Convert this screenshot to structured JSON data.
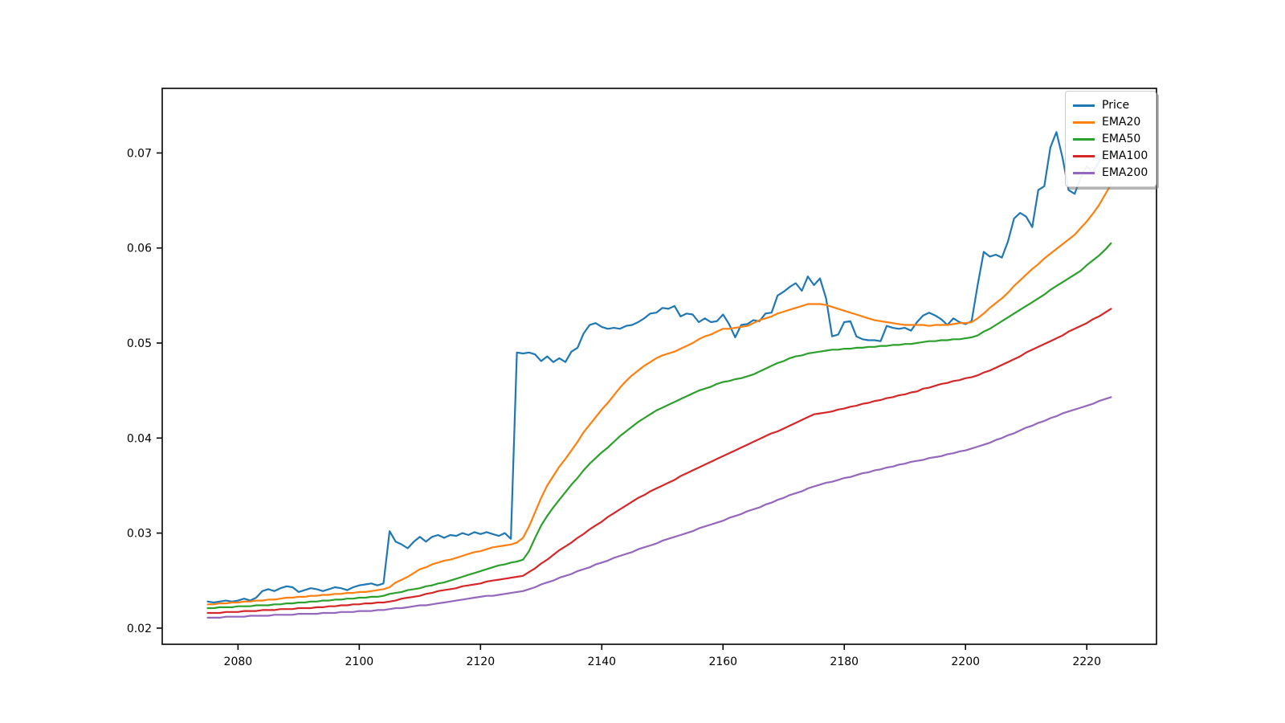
{
  "chart_data": {
    "type": "line",
    "title": "",
    "xlabel": "",
    "ylabel": "",
    "grid": false,
    "background": "#ffffff",
    "xlim": [
      2067.5,
      2231.5
    ],
    "ylim": [
      0.0183,
      0.0768
    ],
    "x_ticks": [
      2080,
      2100,
      2120,
      2140,
      2160,
      2180,
      2200,
      2220
    ],
    "x_tick_labels": [
      "2080",
      "2100",
      "2120",
      "2140",
      "2160",
      "2180",
      "2200",
      "2220"
    ],
    "y_ticks": [
      0.02,
      0.03,
      0.04,
      0.05,
      0.06,
      0.07
    ],
    "y_tick_labels": [
      "0.02",
      "0.03",
      "0.04",
      "0.05",
      "0.06",
      "0.07"
    ],
    "legend": {
      "position": "upper right"
    },
    "x_start": 2075,
    "x_step": 1,
    "series": [
      {
        "name": "Price",
        "color": "#1f77b4",
        "values": [
          0.0228,
          0.0227,
          0.0228,
          0.0229,
          0.0228,
          0.0229,
          0.0231,
          0.0229,
          0.0232,
          0.0239,
          0.0241,
          0.0239,
          0.0242,
          0.0244,
          0.0243,
          0.0238,
          0.024,
          0.0242,
          0.0241,
          0.0239,
          0.0241,
          0.0243,
          0.0242,
          0.024,
          0.0243,
          0.0245,
          0.0246,
          0.0247,
          0.0245,
          0.0247,
          0.0302,
          0.0291,
          0.0288,
          0.0284,
          0.0291,
          0.0296,
          0.0291,
          0.0296,
          0.0298,
          0.0295,
          0.0298,
          0.0297,
          0.03,
          0.0298,
          0.0301,
          0.0299,
          0.0301,
          0.0299,
          0.0297,
          0.03,
          0.0294,
          0.049,
          0.0489,
          0.049,
          0.0488,
          0.0481,
          0.0486,
          0.048,
          0.0484,
          0.048,
          0.0491,
          0.0495,
          0.051,
          0.0519,
          0.0521,
          0.0517,
          0.0515,
          0.0516,
          0.0515,
          0.0518,
          0.0519,
          0.0522,
          0.0526,
          0.0531,
          0.0532,
          0.0537,
          0.0536,
          0.0539,
          0.0528,
          0.0531,
          0.053,
          0.0522,
          0.0526,
          0.0522,
          0.0523,
          0.053,
          0.052,
          0.0506,
          0.0519,
          0.052,
          0.0524,
          0.0523,
          0.0531,
          0.0532,
          0.055,
          0.0554,
          0.0559,
          0.0563,
          0.0555,
          0.057,
          0.0561,
          0.0568,
          0.0547,
          0.0507,
          0.0509,
          0.0522,
          0.0523,
          0.0507,
          0.0504,
          0.0503,
          0.0503,
          0.0502,
          0.0518,
          0.0516,
          0.0515,
          0.0516,
          0.0513,
          0.0522,
          0.0529,
          0.0532,
          0.0529,
          0.0525,
          0.0519,
          0.0526,
          0.0522,
          0.052,
          0.0523,
          0.0561,
          0.0596,
          0.0591,
          0.0593,
          0.059,
          0.0607,
          0.0631,
          0.0637,
          0.0633,
          0.0622,
          0.0661,
          0.0665,
          0.0706,
          0.0722,
          0.0695,
          0.0661,
          0.0657,
          0.0674,
          0.0686,
          0.0679,
          0.0691,
          0.0699,
          0.0701
        ]
      },
      {
        "name": "EMA20",
        "color": "#ff7f0e",
        "values": [
          0.0225,
          0.0225,
          0.0226,
          0.0226,
          0.0227,
          0.0227,
          0.0228,
          0.0228,
          0.0229,
          0.0229,
          0.023,
          0.023,
          0.0231,
          0.0232,
          0.0232,
          0.0233,
          0.0233,
          0.0234,
          0.0234,
          0.0235,
          0.0235,
          0.0236,
          0.0236,
          0.0237,
          0.0237,
          0.0238,
          0.0238,
          0.0239,
          0.024,
          0.0241,
          0.0243,
          0.0248,
          0.0251,
          0.0254,
          0.0258,
          0.0262,
          0.0264,
          0.0267,
          0.0269,
          0.0271,
          0.0272,
          0.0274,
          0.0276,
          0.0278,
          0.028,
          0.0281,
          0.0283,
          0.0285,
          0.0286,
          0.0287,
          0.0288,
          0.029,
          0.0295,
          0.0307,
          0.0322,
          0.0337,
          0.035,
          0.036,
          0.037,
          0.0378,
          0.0387,
          0.0396,
          0.0406,
          0.0414,
          0.0422,
          0.043,
          0.0437,
          0.0445,
          0.0453,
          0.046,
          0.0466,
          0.0471,
          0.0476,
          0.048,
          0.0484,
          0.0487,
          0.0489,
          0.0491,
          0.0494,
          0.0497,
          0.05,
          0.0504,
          0.0507,
          0.0509,
          0.0512,
          0.0515,
          0.0515,
          0.0516,
          0.0517,
          0.0518,
          0.0521,
          0.0524,
          0.0526,
          0.0528,
          0.0531,
          0.0533,
          0.0535,
          0.0537,
          0.0539,
          0.0541,
          0.0541,
          0.0541,
          0.054,
          0.0538,
          0.0536,
          0.0534,
          0.0532,
          0.053,
          0.0528,
          0.0526,
          0.0524,
          0.0523,
          0.0522,
          0.0521,
          0.052,
          0.0519,
          0.0519,
          0.0519,
          0.0519,
          0.0518,
          0.0519,
          0.0519,
          0.0519,
          0.052,
          0.0521,
          0.0521,
          0.0522,
          0.0526,
          0.0531,
          0.0537,
          0.0542,
          0.0547,
          0.0553,
          0.056,
          0.0566,
          0.0572,
          0.0578,
          0.0583,
          0.0589,
          0.0594,
          0.0599,
          0.0604,
          0.0609,
          0.0614,
          0.0621,
          0.0628,
          0.0636,
          0.0645,
          0.0656,
          0.0667
        ]
      },
      {
        "name": "EMA50",
        "color": "#2ca02c",
        "values": [
          0.0221,
          0.0221,
          0.0222,
          0.0222,
          0.0222,
          0.0223,
          0.0223,
          0.0223,
          0.0224,
          0.0224,
          0.0224,
          0.0225,
          0.0225,
          0.0226,
          0.0226,
          0.0227,
          0.0227,
          0.0228,
          0.0228,
          0.0229,
          0.0229,
          0.023,
          0.023,
          0.0231,
          0.0231,
          0.0232,
          0.0232,
          0.0233,
          0.0233,
          0.0234,
          0.0236,
          0.0237,
          0.0238,
          0.024,
          0.0241,
          0.0242,
          0.0244,
          0.0245,
          0.0247,
          0.0248,
          0.025,
          0.0252,
          0.0254,
          0.0256,
          0.0258,
          0.026,
          0.0262,
          0.0264,
          0.0266,
          0.0267,
          0.0269,
          0.027,
          0.0272,
          0.0281,
          0.0295,
          0.0308,
          0.0318,
          0.0327,
          0.0335,
          0.0343,
          0.0351,
          0.0358,
          0.0366,
          0.0373,
          0.0379,
          0.0385,
          0.039,
          0.0396,
          0.0402,
          0.0407,
          0.0412,
          0.0417,
          0.0421,
          0.0425,
          0.0429,
          0.0432,
          0.0435,
          0.0438,
          0.0441,
          0.0444,
          0.0447,
          0.045,
          0.0452,
          0.0454,
          0.0457,
          0.0459,
          0.046,
          0.0462,
          0.0463,
          0.0465,
          0.0467,
          0.047,
          0.0473,
          0.0476,
          0.0479,
          0.0481,
          0.0484,
          0.0486,
          0.0487,
          0.0489,
          0.049,
          0.0491,
          0.0492,
          0.0493,
          0.0493,
          0.0494,
          0.0494,
          0.0495,
          0.0495,
          0.0496,
          0.0496,
          0.0497,
          0.0497,
          0.0498,
          0.0498,
          0.0499,
          0.0499,
          0.05,
          0.0501,
          0.0502,
          0.0502,
          0.0503,
          0.0503,
          0.0504,
          0.0504,
          0.0505,
          0.0506,
          0.0508,
          0.0512,
          0.0515,
          0.0519,
          0.0523,
          0.0527,
          0.0531,
          0.0535,
          0.0539,
          0.0543,
          0.0547,
          0.0551,
          0.0556,
          0.056,
          0.0564,
          0.0568,
          0.0572,
          0.0576,
          0.0582,
          0.0587,
          0.0592,
          0.0598,
          0.0605
        ]
      },
      {
        "name": "EMA100",
        "color": "#d62728",
        "values": [
          0.0216,
          0.0216,
          0.0216,
          0.0217,
          0.0217,
          0.0217,
          0.0218,
          0.0218,
          0.0218,
          0.0219,
          0.0219,
          0.0219,
          0.022,
          0.022,
          0.022,
          0.0221,
          0.0221,
          0.0221,
          0.0222,
          0.0222,
          0.0223,
          0.0223,
          0.0224,
          0.0224,
          0.0225,
          0.0225,
          0.0226,
          0.0226,
          0.0227,
          0.0227,
          0.0228,
          0.0229,
          0.0231,
          0.0232,
          0.0233,
          0.0234,
          0.0236,
          0.0237,
          0.0239,
          0.024,
          0.0241,
          0.0242,
          0.0244,
          0.0245,
          0.0246,
          0.0247,
          0.0249,
          0.025,
          0.0251,
          0.0252,
          0.0253,
          0.0254,
          0.0255,
          0.0259,
          0.0263,
          0.0268,
          0.0272,
          0.0277,
          0.0282,
          0.0286,
          0.029,
          0.0295,
          0.0299,
          0.0304,
          0.0308,
          0.0312,
          0.0317,
          0.0321,
          0.0325,
          0.0329,
          0.0333,
          0.0337,
          0.034,
          0.0344,
          0.0347,
          0.035,
          0.0353,
          0.0356,
          0.036,
          0.0363,
          0.0366,
          0.0369,
          0.0372,
          0.0375,
          0.0378,
          0.0381,
          0.0384,
          0.0387,
          0.039,
          0.0393,
          0.0396,
          0.0399,
          0.0402,
          0.0405,
          0.0407,
          0.041,
          0.0413,
          0.0416,
          0.0419,
          0.0422,
          0.0425,
          0.0426,
          0.0427,
          0.0428,
          0.043,
          0.0431,
          0.0433,
          0.0434,
          0.0436,
          0.0437,
          0.0439,
          0.044,
          0.0442,
          0.0443,
          0.0445,
          0.0446,
          0.0448,
          0.0449,
          0.0452,
          0.0453,
          0.0455,
          0.0457,
          0.0458,
          0.046,
          0.0461,
          0.0463,
          0.0464,
          0.0466,
          0.0469,
          0.0471,
          0.0474,
          0.0477,
          0.048,
          0.0483,
          0.0486,
          0.049,
          0.0493,
          0.0496,
          0.0499,
          0.0502,
          0.0505,
          0.0508,
          0.0512,
          0.0515,
          0.0518,
          0.0521,
          0.0525,
          0.0528,
          0.0532,
          0.0536
        ]
      },
      {
        "name": "EMA200",
        "color": "#9467bd",
        "values": [
          0.0211,
          0.0211,
          0.0211,
          0.0212,
          0.0212,
          0.0212,
          0.0212,
          0.0213,
          0.0213,
          0.0213,
          0.0213,
          0.0214,
          0.0214,
          0.0214,
          0.0214,
          0.0215,
          0.0215,
          0.0215,
          0.0215,
          0.0216,
          0.0216,
          0.0216,
          0.0217,
          0.0217,
          0.0217,
          0.0218,
          0.0218,
          0.0218,
          0.0219,
          0.0219,
          0.022,
          0.0221,
          0.0221,
          0.0222,
          0.0223,
          0.0224,
          0.0224,
          0.0225,
          0.0226,
          0.0227,
          0.0228,
          0.0229,
          0.023,
          0.0231,
          0.0232,
          0.0233,
          0.0234,
          0.0234,
          0.0235,
          0.0236,
          0.0237,
          0.0238,
          0.0239,
          0.0241,
          0.0243,
          0.0246,
          0.0248,
          0.025,
          0.0253,
          0.0255,
          0.0257,
          0.026,
          0.0262,
          0.0264,
          0.0267,
          0.0269,
          0.0271,
          0.0274,
          0.0276,
          0.0278,
          0.028,
          0.0283,
          0.0285,
          0.0287,
          0.0289,
          0.0292,
          0.0294,
          0.0296,
          0.0298,
          0.03,
          0.0302,
          0.0305,
          0.0307,
          0.0309,
          0.0311,
          0.0313,
          0.0316,
          0.0318,
          0.032,
          0.0323,
          0.0325,
          0.0327,
          0.033,
          0.0332,
          0.0335,
          0.0337,
          0.034,
          0.0342,
          0.0344,
          0.0347,
          0.0349,
          0.0351,
          0.0353,
          0.0354,
          0.0356,
          0.0358,
          0.0359,
          0.0361,
          0.0363,
          0.0364,
          0.0366,
          0.0367,
          0.0369,
          0.037,
          0.0372,
          0.0373,
          0.0375,
          0.0376,
          0.0377,
          0.0379,
          0.038,
          0.0381,
          0.0383,
          0.0384,
          0.0386,
          0.0387,
          0.0389,
          0.0391,
          0.0393,
          0.0395,
          0.0398,
          0.04,
          0.0403,
          0.0405,
          0.0408,
          0.0411,
          0.0413,
          0.0416,
          0.0418,
          0.0421,
          0.0423,
          0.0426,
          0.0428,
          0.043,
          0.0432,
          0.0434,
          0.0436,
          0.0439,
          0.0441,
          0.0443
        ]
      }
    ]
  }
}
